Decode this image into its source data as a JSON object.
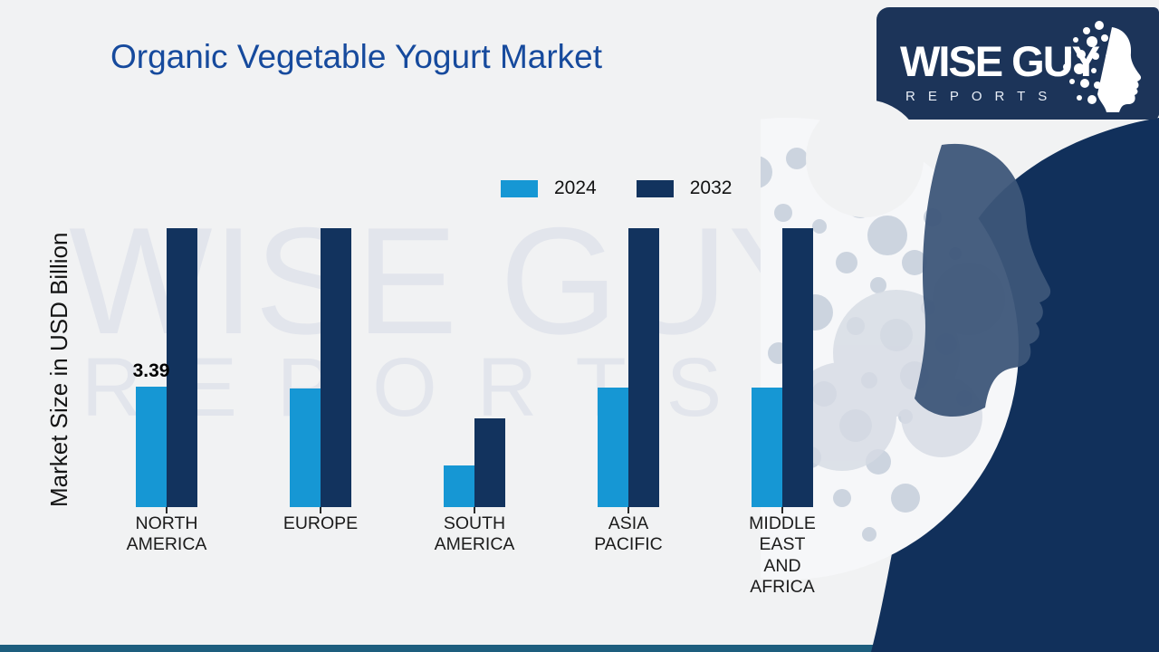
{
  "title": "Organic Vegetable Yogurt Market",
  "logo": {
    "line1": "WISE GUY",
    "line2": "REPORTS"
  },
  "watermark": {
    "line1": "WISE GUY",
    "line2": "REPORTS"
  },
  "colors": {
    "title_blue": "#164a9d",
    "series_2024": "#1697d4",
    "series_2032": "#12335e",
    "logo_navy": "#1c3459",
    "corner_navy": "#11305b",
    "bottom_strip_teal": "#1d5e7e",
    "background": "#f1f2f3",
    "watermark_gray": "#e2e5ec"
  },
  "chart_data": {
    "type": "bar",
    "title": "Organic Vegetable Yogurt Market",
    "xlabel": "",
    "ylabel": "Market Size in USD Billion",
    "categories": [
      "NORTH AMERICA",
      "EUROPE",
      "SOUTH AMERICA",
      "ASIA PACIFIC",
      "MIDDLE EAST AND AFRICA"
    ],
    "category_label_lines": [
      [
        "NORTH",
        "AMERICA"
      ],
      [
        "EUROPE"
      ],
      [
        "SOUTH",
        "AMERICA"
      ],
      [
        "ASIA",
        "PACIFIC"
      ],
      [
        "MIDDLE",
        "EAST",
        "AND",
        "AFRICA"
      ]
    ],
    "series": [
      {
        "name": "2024",
        "color": "#1697d4",
        "values": [
          3.39,
          3.35,
          1.17,
          3.36,
          3.36
        ]
      },
      {
        "name": "2032",
        "color": "#12335e",
        "values": [
          7.85,
          7.85,
          2.5,
          7.85,
          7.85
        ]
      }
    ],
    "shown_data_labels": [
      {
        "series": "2024",
        "category": "NORTH AMERICA",
        "text": "3.39"
      }
    ],
    "legend_position": "top",
    "grid": false,
    "ylim": [
      0,
      8.5
    ]
  }
}
